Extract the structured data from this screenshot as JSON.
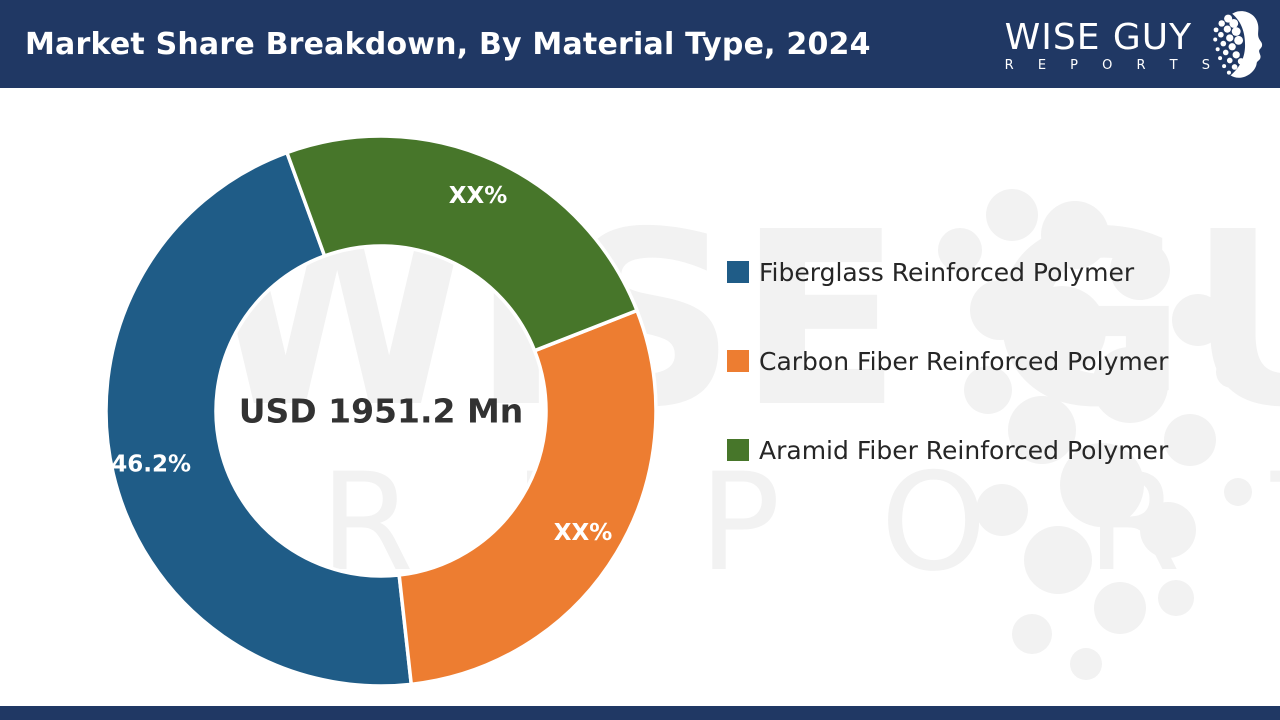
{
  "header": {
    "title": "Market Share Breakdown, By Material Type, 2024",
    "logo": {
      "line1": "WISE GUY",
      "line2": "R E P O R T S"
    }
  },
  "watermark": {
    "line1": "WISE GUY",
    "line2": "REPORTS"
  },
  "chart_data": {
    "type": "pie",
    "subtype": "donut",
    "title": "Market Share Breakdown, By Material Type, 2024",
    "center_label": "USD 1951.2 Mn",
    "start_angle_deg": 110,
    "direction": "counterclockwise",
    "donut_hole_ratio": 0.6,
    "legend_position": "right",
    "segments": [
      {
        "name": "Fiberglass Reinforced Polymer",
        "slug": "fiberglass-reinforced-polymer",
        "value": 46.2,
        "label": "46.2%",
        "color": "#1F5C87"
      },
      {
        "name": "Carbon Fiber Reinforced Polymer",
        "slug": "carbon-fiber-reinforced-polymer",
        "value": 29.2,
        "label": "XX%",
        "color": "#ED7D31"
      },
      {
        "name": "Aramid Fiber Reinforced Polymer",
        "slug": "aramid-fiber-reinforced-polymer",
        "value": 24.6,
        "label": "XX%",
        "color": "#47762A"
      }
    ]
  },
  "colors": {
    "header_bg": "#203864",
    "footer_bg": "#203864",
    "percent_label": "#FFFFFF",
    "center_text": "#323232",
    "legend_text": "#262626",
    "watermark": "#F2F2F2"
  }
}
